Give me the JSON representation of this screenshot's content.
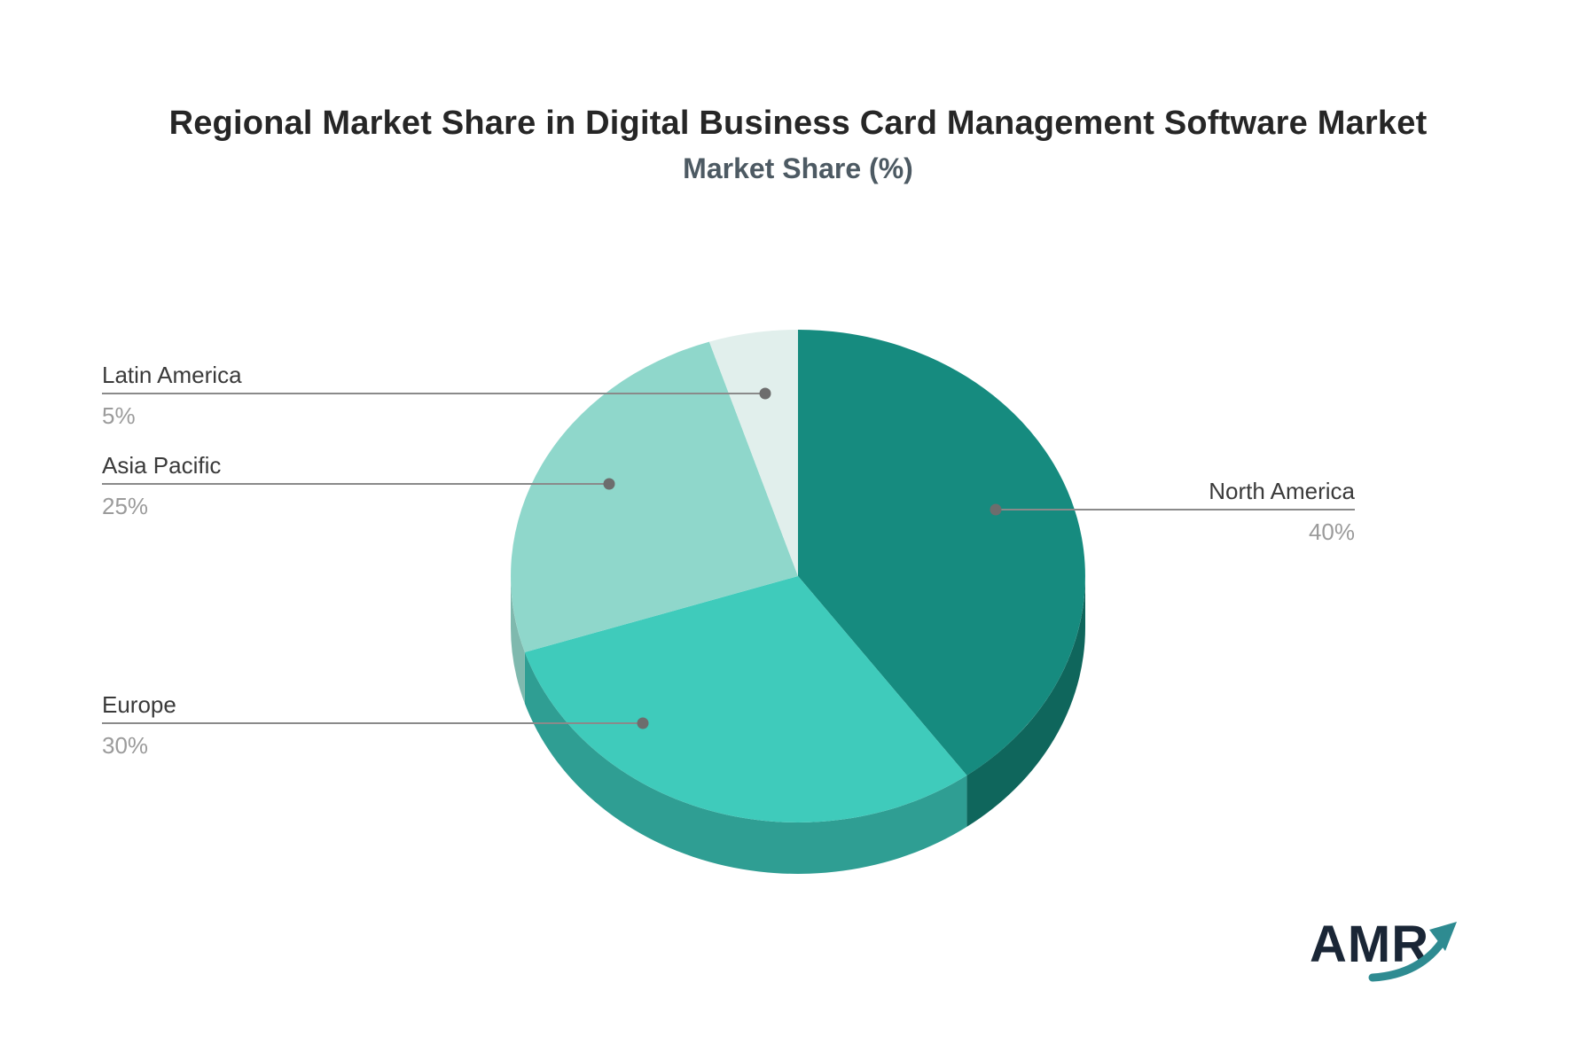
{
  "title": "Regional Market Share in Digital Business Card Management Software Market",
  "subtitle": "Market Share (%)",
  "slices": [
    {
      "label": "North America",
      "value": 40,
      "pct_label": "40%",
      "color": "#168b7f",
      "side_color": "#0f665c"
    },
    {
      "label": "Europe",
      "value": 30,
      "pct_label": "30%",
      "color": "#3fcbbb",
      "side_color": "#2f9e93"
    },
    {
      "label": "Asia Pacific",
      "value": 25,
      "pct_label": "25%",
      "color": "#8fd7cb",
      "side_color": "#7fb9ae"
    },
    {
      "label": "Latin America",
      "value": 5,
      "pct_label": "5%",
      "color": "#e1efec",
      "side_color": "#cfe3df"
    }
  ],
  "palette": {
    "title_color": "#262626",
    "subtitle_color": "#4d5a63",
    "label_name_color": "#3a3a3a",
    "label_value_color": "#9b9b9b",
    "leader_line_color": "#8a8a8a",
    "leader_dot_color": "#6d6d6d",
    "logo_text_color": "#1a2636",
    "logo_arrow_color": "#2e8b91",
    "background": "#ffffff"
  },
  "logo": {
    "text": "AMR"
  },
  "chart_data": {
    "type": "pie",
    "style": "3d-pie",
    "title": "Regional Market Share in Digital Business Card Management Software Market",
    "subtitle": "Market Share (%)",
    "unit": "%",
    "categories": [
      "North America",
      "Europe",
      "Asia Pacific",
      "Latin America"
    ],
    "values": [
      40,
      30,
      25,
      5
    ],
    "colors": [
      "#168b7f",
      "#3fcbbb",
      "#8fd7cb",
      "#e1efec"
    ],
    "start": "12-oclock",
    "direction": "clockwise",
    "legend_position": "none",
    "label_style": "leader-line callouts with region name above line and percent below"
  }
}
